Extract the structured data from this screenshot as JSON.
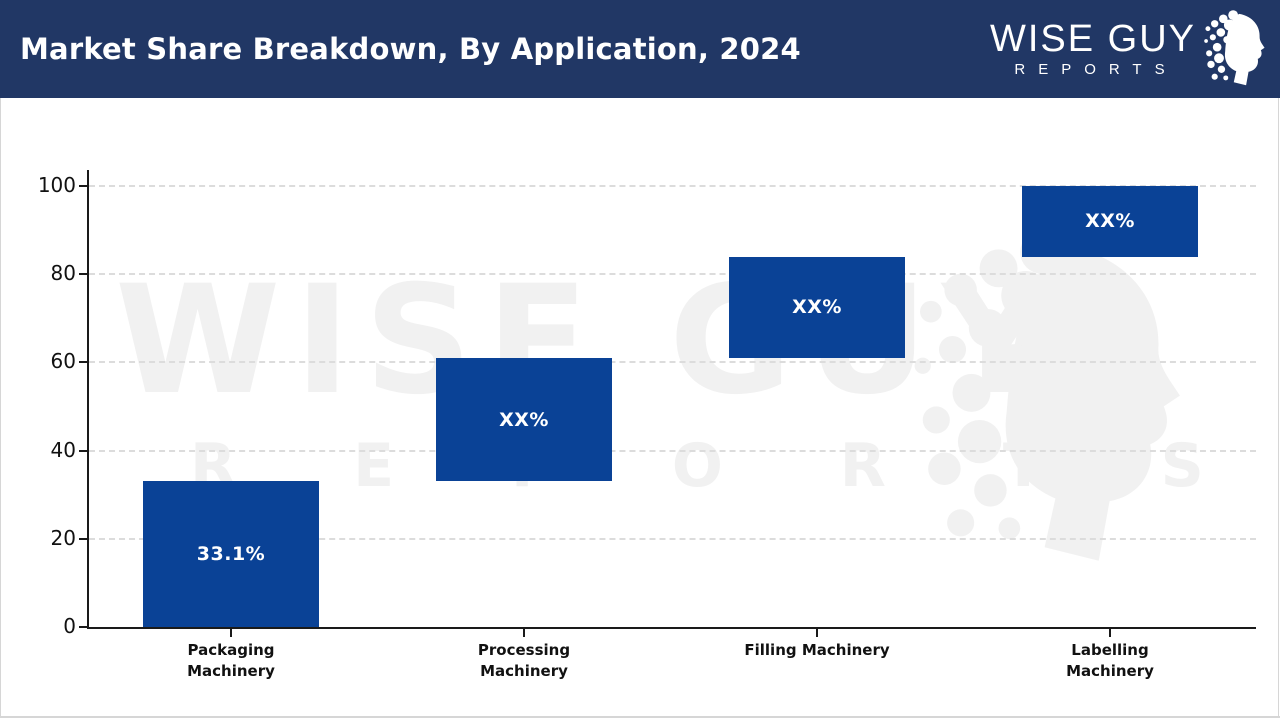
{
  "header": {
    "title": "Market Share Breakdown, By Application, 2024",
    "bg_color": "#213765",
    "logo": {
      "line1": "WISE GUY",
      "line2": "REPORTS"
    }
  },
  "watermark": {
    "line1": "WISE GUY",
    "line2": "R E P O R T S"
  },
  "chart_data": {
    "type": "bar",
    "subtype": "waterfall",
    "title": "Market Share Breakdown, By Application, 2024",
    "categories": [
      "Packaging Machinery",
      "Processing Machinery",
      "Filling Machinery",
      "Labelling Machinery"
    ],
    "display_categories": [
      "Packaging\nMachinery",
      "Processing\nMachinery",
      "Filling Machinery",
      "Labelling\nMachinery"
    ],
    "segments": [
      {
        "category": "Packaging Machinery",
        "start": 0,
        "end": 33.1,
        "label": "33.1%"
      },
      {
        "category": "Processing Machinery",
        "start": 33.1,
        "end": 61,
        "label": "XX%"
      },
      {
        "category": "Filling Machinery",
        "start": 61,
        "end": 84,
        "label": "XX%"
      },
      {
        "category": "Labelling Machinery",
        "start": 84,
        "end": 100,
        "label": "XX%"
      }
    ],
    "value_labels": [
      "33.1%",
      "XX%",
      "XX%",
      "XX%"
    ],
    "ylim": [
      0,
      100
    ],
    "yticks": [
      0,
      20,
      40,
      60,
      80,
      100
    ],
    "xlabel": "",
    "ylabel": "",
    "grid": "horizontal-dashed",
    "legend": "none",
    "bar_color": "#0a4296",
    "bar_label_color": "#ffffff",
    "grid_color": "#dcdcdc",
    "axis_color": "#1a1a1a"
  }
}
